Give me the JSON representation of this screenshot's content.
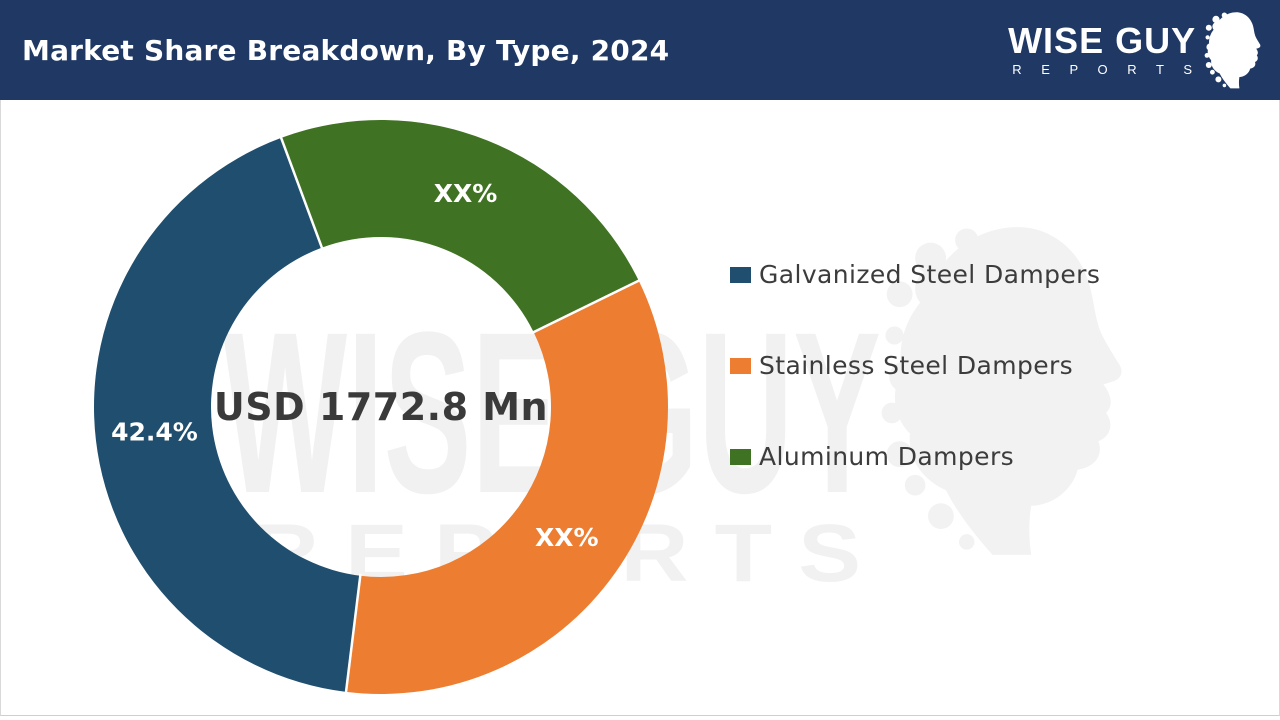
{
  "header": {
    "title": "Market Share Breakdown, By Type, 2024",
    "bg_color": "#1F3864",
    "logo": {
      "line1": "WISE GUY",
      "line2": "R E P O R T S"
    }
  },
  "watermark": {
    "line1": "WISE GUY",
    "line2": "R E P O R T S",
    "color": "#F1F1F1"
  },
  "chart_data": {
    "type": "donut",
    "title": "Market Share Breakdown, By Type, 2024",
    "center_label": "USD 1772.8 Mn",
    "start_angle_deg": 187,
    "clockwise": true,
    "outer_radius_px": 287,
    "inner_radius_px": 170,
    "label_radius_px": 228,
    "segments": [
      {
        "name": "Galvanized Steel Dampers",
        "value_pct": 42.4,
        "display_label": "42.4%",
        "color": "#1F4E6E"
      },
      {
        "name": "Aluminum Dampers",
        "value_pct": 23.4,
        "display_label": "XX%",
        "color": "#3F7222"
      },
      {
        "name": "Stainless Steel Dampers",
        "value_pct": 34.2,
        "display_label": "XX%",
        "color": "#ED7D31"
      }
    ],
    "legend_order": [
      0,
      2,
      1
    ],
    "legend_position": "right",
    "background": "#FFFFFF",
    "text_color": "#3A3A3A"
  }
}
